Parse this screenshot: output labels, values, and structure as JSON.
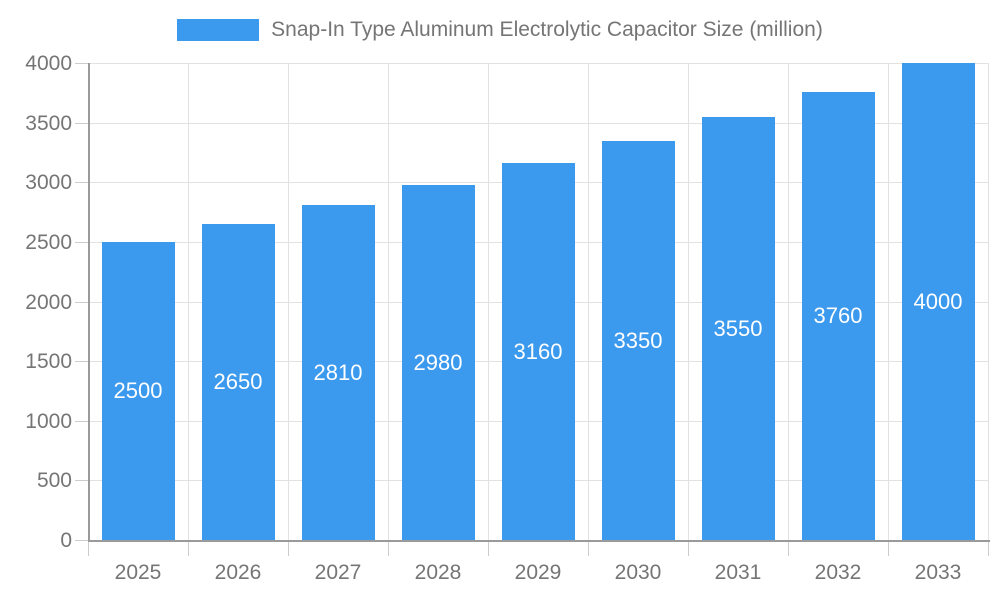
{
  "legend": {
    "label": "Snap-In Type Aluminum Electrolytic Capacitor Size (million)"
  },
  "chart_data": {
    "type": "bar",
    "title": "Snap-In Type Aluminum Electrolytic Capacitor Size (million)",
    "series_name": "Snap-In Type Aluminum Electrolytic Capacitor Size (million)",
    "categories": [
      "2025",
      "2026",
      "2027",
      "2028",
      "2029",
      "2030",
      "2031",
      "2032",
      "2033"
    ],
    "values": [
      2500,
      2650,
      2810,
      2980,
      3160,
      3350,
      3550,
      3760,
      4000
    ],
    "data_labels_shown": true,
    "xlabel": "",
    "ylabel": "",
    "ylim": [
      0,
      4000
    ],
    "ytick_interval": 500,
    "yticks": [
      0,
      500,
      1000,
      1500,
      2000,
      2500,
      3000,
      3500,
      4000
    ],
    "grid": true,
    "legend_position": "top",
    "colors": {
      "bar": "#3b99ee",
      "bar_value_label": "#ffffff",
      "axis_text": "#757575",
      "gridline": "#e2e2e2",
      "axis_line": "#9a9a9a",
      "tick_mark": "#cccccc",
      "background": "#ffffff"
    }
  }
}
